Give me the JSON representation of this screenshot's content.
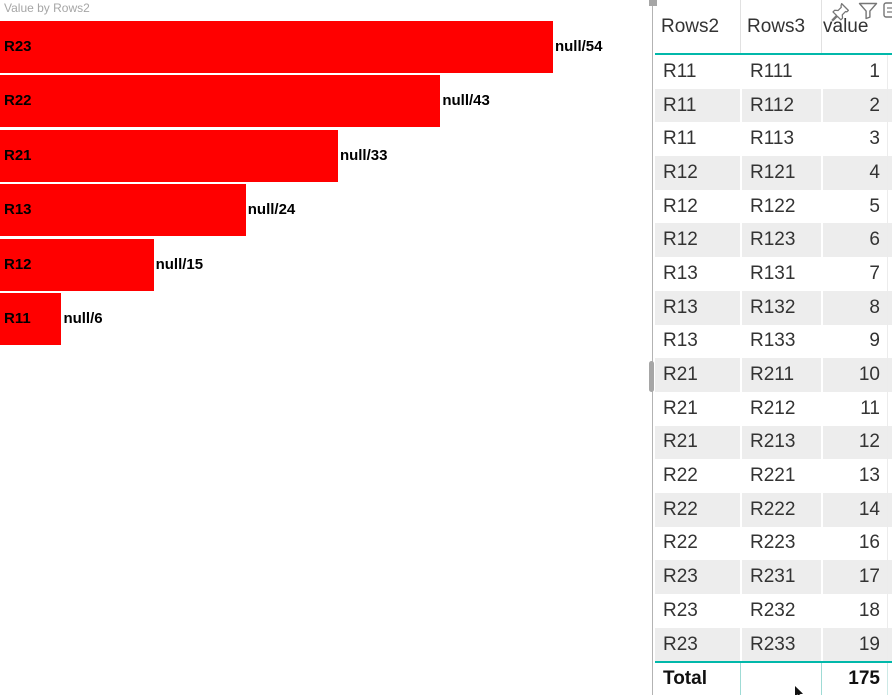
{
  "chart_data": [
    {
      "type": "bar",
      "orientation": "horizontal",
      "title": "Value by Rows2",
      "categories": [
        "R23",
        "R22",
        "R21",
        "R13",
        "R12",
        "R11"
      ],
      "values": [
        54,
        43,
        33,
        24,
        15,
        6
      ],
      "data_labels": [
        "null/54",
        "null/43",
        "null/33",
        "null/24",
        "null/15",
        "null/6"
      ],
      "x_range": [
        0,
        54
      ],
      "bar_color": "#ff0000",
      "grid": false,
      "legend": "none",
      "sort": "descending"
    },
    {
      "type": "table",
      "columns": [
        "Rows2",
        "Rows3",
        "value"
      ],
      "rows": [
        [
          "R11",
          "R111",
          "1"
        ],
        [
          "R11",
          "R112",
          "2"
        ],
        [
          "R11",
          "R113",
          "3"
        ],
        [
          "R12",
          "R121",
          "4"
        ],
        [
          "R12",
          "R122",
          "5"
        ],
        [
          "R12",
          "R123",
          "6"
        ],
        [
          "R13",
          "R131",
          "7"
        ],
        [
          "R13",
          "R132",
          "8"
        ],
        [
          "R13",
          "R133",
          "9"
        ],
        [
          "R21",
          "R211",
          "10"
        ],
        [
          "R21",
          "R212",
          "11"
        ],
        [
          "R21",
          "R213",
          "12"
        ],
        [
          "R22",
          "R221",
          "13"
        ],
        [
          "R22",
          "R222",
          "14"
        ],
        [
          "R22",
          "R223",
          "16"
        ],
        [
          "R23",
          "R231",
          "17"
        ],
        [
          "R23",
          "R232",
          "18"
        ],
        [
          "R23",
          "R233",
          "19"
        ]
      ],
      "total": {
        "label": "Total",
        "value": "175"
      }
    }
  ],
  "visual_toolbar": {
    "icons": [
      "pin-icon",
      "filter-icon",
      "more-icon"
    ]
  },
  "colors": {
    "bar_red": "#ff0000",
    "accent_teal": "#01b8aa",
    "row_alt": "#ededed",
    "title_grey": "#a6a6a6",
    "icon_grey": "#767676",
    "text": "#333333"
  }
}
